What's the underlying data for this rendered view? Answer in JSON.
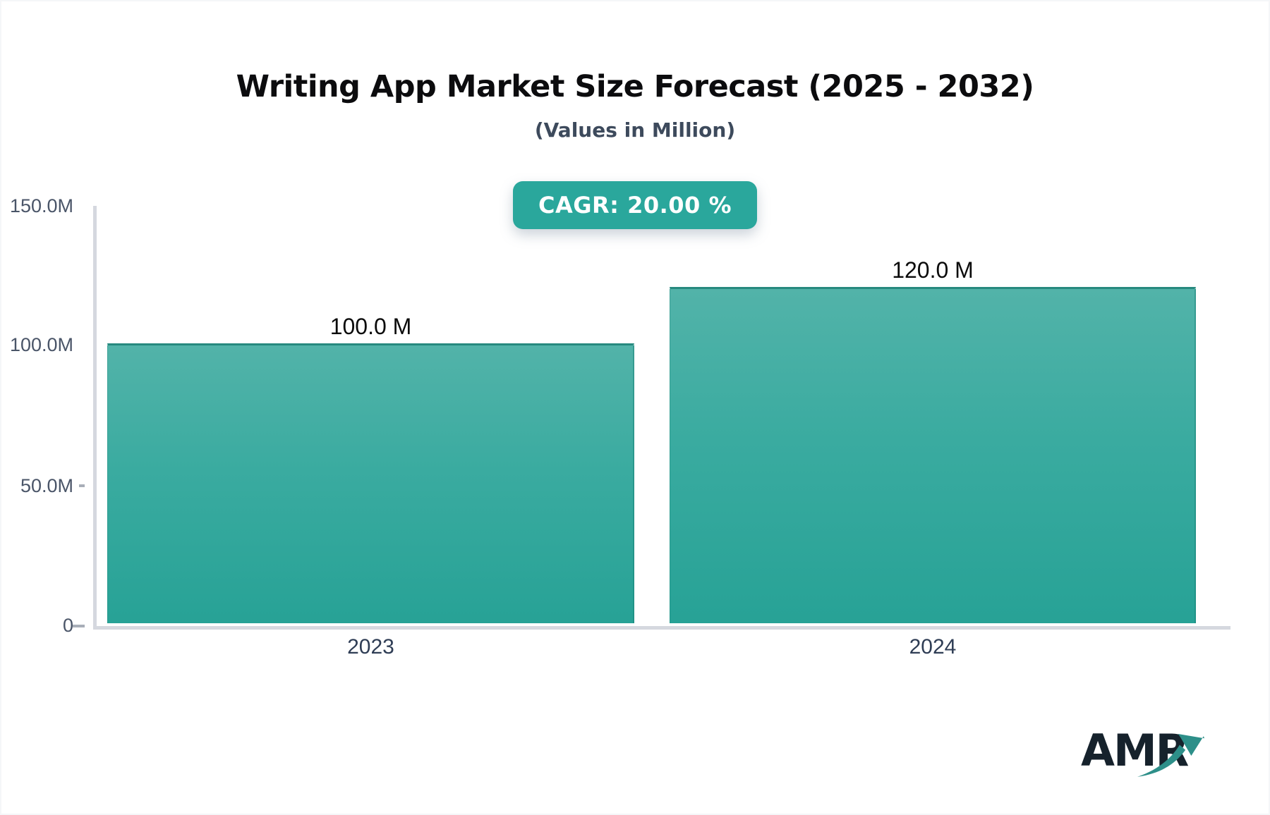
{
  "header": {
    "title": "Writing App Market Size Forecast (2025 - 2032)",
    "subtitle": "(Values in Million)",
    "cagr_badge": "CAGR: 20.00 %"
  },
  "chart_data": {
    "type": "bar",
    "title": "Writing App Market Size Forecast (2025 - 2032)",
    "subtitle": "(Values in Million)",
    "unit": "Million",
    "cagr_percent": 20.0,
    "categories": [
      "2023",
      "2024"
    ],
    "values": [
      100.0,
      120.0
    ],
    "value_labels": [
      "100.0 M",
      "120.0 M"
    ],
    "xlabel": "",
    "ylabel": "",
    "ylim": [
      0,
      150
    ],
    "ytick_labels": [
      "150.0M",
      "100.0M",
      "50.0M",
      "0"
    ],
    "ytick_values": [
      150,
      100,
      50,
      0
    ],
    "grid": false,
    "legend": "none",
    "colors": {
      "bar_gradient_top": "#52b3a9",
      "bar_gradient_bottom": "#27a296",
      "bar_border_top": "#27897f",
      "badge_background": "#2aa79c",
      "badge_text": "#ffffff",
      "axis_line": "#d5d8df",
      "ytick_text": "#4a5568",
      "category_text": "#2f3d55",
      "value_label_text": "#0b0b0b"
    }
  },
  "branding": {
    "logo_text": "AMR",
    "logo_text_color": "#16222c",
    "logo_arrow_color": "#2d8f89"
  }
}
